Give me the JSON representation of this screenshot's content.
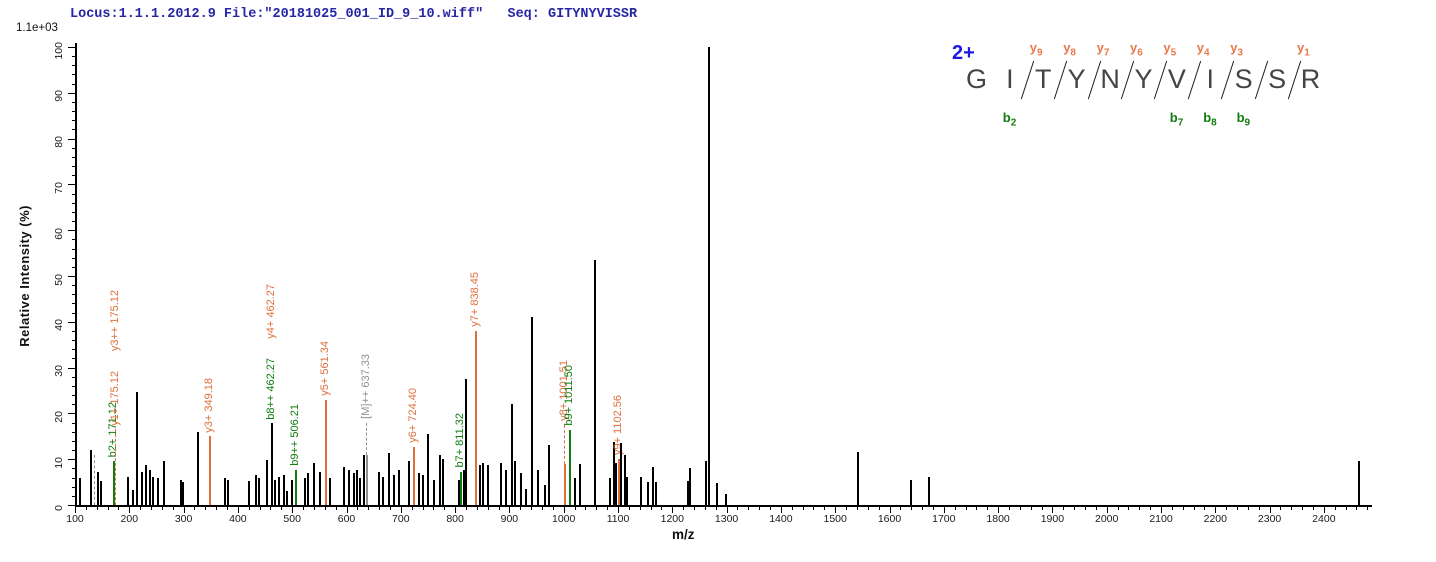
{
  "header": {
    "locus_file": "Locus:1.1.1.2012.9 File:\"20181025_001_ID_9_10.wiff\"",
    "seq_prefix": "Seq: ",
    "sequence": "GITYNYVISSR"
  },
  "colors": {
    "header_blue": "#2626A5",
    "charge_blue": "#1A1AE0",
    "y_ion_orange": "#DF6F3C",
    "b_ion_green": "#0F7D0F",
    "neutral_gray": "#909090",
    "peak_black": "#000000"
  },
  "fragment_diagram": {
    "charge_label": "2+",
    "residues": [
      "G",
      "I",
      "T",
      "Y",
      "N",
      "Y",
      "V",
      "I",
      "S",
      "S",
      "R"
    ],
    "cuts": [
      {
        "after": 2,
        "y": "y9",
        "b": "b2"
      },
      {
        "after": 3,
        "y": "y8",
        "b": null
      },
      {
        "after": 4,
        "y": "y7",
        "b": null
      },
      {
        "after": 5,
        "y": "y6",
        "b": null
      },
      {
        "after": 6,
        "y": "y5",
        "b": null
      },
      {
        "after": 7,
        "y": "y4",
        "b": "b7"
      },
      {
        "after": 8,
        "y": "y3",
        "b": "b8"
      },
      {
        "after": 9,
        "y": null,
        "b": "b9"
      },
      {
        "after": 10,
        "y": "y1",
        "b": null
      }
    ]
  },
  "chart_data": {
    "type": "bar",
    "title": "",
    "xlabel": "m/z",
    "ylabel": "Relative  Intensity (%)",
    "y_scale_note": "1.1e+03",
    "xlim": [
      100,
      2480
    ],
    "ylim": [
      0,
      100
    ],
    "x_major_step": 100,
    "x_minor_step": 20,
    "x_label_max": 2400,
    "y_major_step": 10,
    "y_minor_step": 2,
    "grid": false,
    "peaks": [
      {
        "mz": 110,
        "i": 6
      },
      {
        "mz": 130,
        "i": 12
      },
      {
        "mz": 136,
        "i": 0,
        "c": "m",
        "d": 11
      },
      {
        "mz": 142,
        "i": 7.3
      },
      {
        "mz": 148,
        "i": 5.2
      },
      {
        "mz": 171.12,
        "i": 9.5,
        "c": "b",
        "labels": [
          {
            "t": "b2+ 171.12",
            "c": "b"
          }
        ]
      },
      {
        "mz": 175.12,
        "i": 0,
        "c": "y",
        "d": 16.5,
        "labels": [
          {
            "t": "y1+ 175.12",
            "c": "y"
          },
          {
            "t": "y3++ 175.12",
            "c": "y"
          }
        ]
      },
      {
        "mz": 198,
        "i": 6.2
      },
      {
        "mz": 207,
        "i": 3.3
      },
      {
        "mz": 215,
        "i": 24.7
      },
      {
        "mz": 224,
        "i": 7.3
      },
      {
        "mz": 231,
        "i": 8.7
      },
      {
        "mz": 238,
        "i": 7.6
      },
      {
        "mz": 244,
        "i": 6.2
      },
      {
        "mz": 253,
        "i": 6
      },
      {
        "mz": 264,
        "i": 9.5
      },
      {
        "mz": 295,
        "i": 5.5
      },
      {
        "mz": 299,
        "i": 5
      },
      {
        "mz": 326,
        "i": 16
      },
      {
        "mz": 349.18,
        "i": 15,
        "c": "y",
        "labels": [
          {
            "t": "y3+ 349.18",
            "c": "y"
          }
        ]
      },
      {
        "mz": 377,
        "i": 6
      },
      {
        "mz": 382,
        "i": 5.5
      },
      {
        "mz": 420,
        "i": 5.3
      },
      {
        "mz": 434,
        "i": 6.5
      },
      {
        "mz": 439,
        "i": 6
      },
      {
        "mz": 454,
        "i": 9.8
      },
      {
        "mz": 462.27,
        "i": 17.8,
        "labels": [
          {
            "t": "b8++ 462.27",
            "c": "b"
          },
          {
            "t": "y4+ 462.27",
            "c": "y"
          }
        ]
      },
      {
        "mz": 468,
        "i": 5.5
      },
      {
        "mz": 476,
        "i": 6.2
      },
      {
        "mz": 484,
        "i": 6.5
      },
      {
        "mz": 491,
        "i": 3
      },
      {
        "mz": 500,
        "i": 5.5
      },
      {
        "mz": 506.21,
        "i": 7.6,
        "c": "b",
        "labels": [
          {
            "t": "b9++ 506.21",
            "c": "b"
          }
        ]
      },
      {
        "mz": 523,
        "i": 5.8
      },
      {
        "mz": 529,
        "i": 6.9
      },
      {
        "mz": 540,
        "i": 9.1
      },
      {
        "mz": 552,
        "i": 7.3
      },
      {
        "mz": 561.34,
        "i": 23,
        "c": "y",
        "labels": [
          {
            "t": "y5+ 561.34",
            "c": "y"
          }
        ]
      },
      {
        "mz": 570,
        "i": 5.8
      },
      {
        "mz": 595,
        "i": 8.4
      },
      {
        "mz": 604,
        "i": 7.6
      },
      {
        "mz": 614,
        "i": 6.9
      },
      {
        "mz": 620,
        "i": 7.6
      },
      {
        "mz": 625,
        "i": 5.8
      },
      {
        "mz": 632,
        "i": 10.9
      },
      {
        "mz": 637.33,
        "i": 11,
        "c": "m",
        "d": 18,
        "labels": [
          {
            "t": "[M]++ 637.33",
            "c": "m"
          }
        ]
      },
      {
        "mz": 660,
        "i": 7.3
      },
      {
        "mz": 668,
        "i": 6.2
      },
      {
        "mz": 678,
        "i": 11.3
      },
      {
        "mz": 687,
        "i": 6.5
      },
      {
        "mz": 696,
        "i": 7.6
      },
      {
        "mz": 715,
        "i": 9.5
      },
      {
        "mz": 724.4,
        "i": 12.7,
        "c": "y",
        "labels": [
          {
            "t": "y6+ 724.40",
            "c": "y"
          }
        ]
      },
      {
        "mz": 733,
        "i": 6.9
      },
      {
        "mz": 741,
        "i": 6.5
      },
      {
        "mz": 750,
        "i": 15.6
      },
      {
        "mz": 761,
        "i": 5.5
      },
      {
        "mz": 773,
        "i": 11
      },
      {
        "mz": 777,
        "i": 10
      },
      {
        "mz": 807,
        "i": 5.5
      },
      {
        "mz": 811.32,
        "i": 7.3,
        "c": "b",
        "labels": [
          {
            "t": "b7+ 811.32",
            "c": "b"
          }
        ]
      },
      {
        "mz": 816,
        "i": 7.6
      },
      {
        "mz": 820,
        "i": 27.5
      },
      {
        "mz": 838.45,
        "i": 38,
        "c": "y",
        "labels": [
          {
            "t": "y7+ 838.45",
            "c": "y"
          }
        ]
      },
      {
        "mz": 845,
        "i": 8.7
      },
      {
        "mz": 852,
        "i": 9.1
      },
      {
        "mz": 861,
        "i": 8.7
      },
      {
        "mz": 884,
        "i": 9.1
      },
      {
        "mz": 893,
        "i": 7.6
      },
      {
        "mz": 905,
        "i": 22
      },
      {
        "mz": 911,
        "i": 9.5
      },
      {
        "mz": 922,
        "i": 6.9
      },
      {
        "mz": 930,
        "i": 3.6
      },
      {
        "mz": 941,
        "i": 41
      },
      {
        "mz": 953,
        "i": 7.6
      },
      {
        "mz": 965,
        "i": 4.4
      },
      {
        "mz": 973,
        "i": 13
      },
      {
        "mz": 1001.51,
        "i": 9,
        "c": "y",
        "d": 17.5,
        "labels": [
          {
            "t": "y8+ 1001.51",
            "c": "y"
          }
        ]
      },
      {
        "mz": 1011.5,
        "i": 16.4,
        "c": "b",
        "labels": [
          {
            "t": "b9+ 1011.50",
            "c": "b"
          }
        ]
      },
      {
        "mz": 1021,
        "i": 5.8
      },
      {
        "mz": 1030,
        "i": 8.9
      },
      {
        "mz": 1057,
        "i": 53.5
      },
      {
        "mz": 1085,
        "i": 5.8
      },
      {
        "mz": 1092,
        "i": 13.8
      },
      {
        "mz": 1097,
        "i": 9.1
      },
      {
        "mz": 1102.56,
        "i": 10,
        "c": "y",
        "labels": [
          {
            "t": "y9+ 1102.56",
            "c": "y"
          }
        ]
      },
      {
        "mz": 1105,
        "i": 13.5
      },
      {
        "mz": 1113,
        "i": 10.9
      },
      {
        "mz": 1117,
        "i": 6.2
      },
      {
        "mz": 1143,
        "i": 6.2
      },
      {
        "mz": 1156,
        "i": 5.1
      },
      {
        "mz": 1164,
        "i": 8.4
      },
      {
        "mz": 1170,
        "i": 5.1
      },
      {
        "mz": 1229,
        "i": 5.3
      },
      {
        "mz": 1233,
        "i": 8
      },
      {
        "mz": 1262,
        "i": 9.5
      },
      {
        "mz": 1267,
        "i": 100
      },
      {
        "mz": 1283,
        "i": 4.7
      },
      {
        "mz": 1298,
        "i": 2.5
      },
      {
        "mz": 1542,
        "i": 11.5
      },
      {
        "mz": 1640,
        "i": 5.5
      },
      {
        "mz": 1673,
        "i": 6.2
      },
      {
        "mz": 2465,
        "i": 9.5
      }
    ]
  }
}
